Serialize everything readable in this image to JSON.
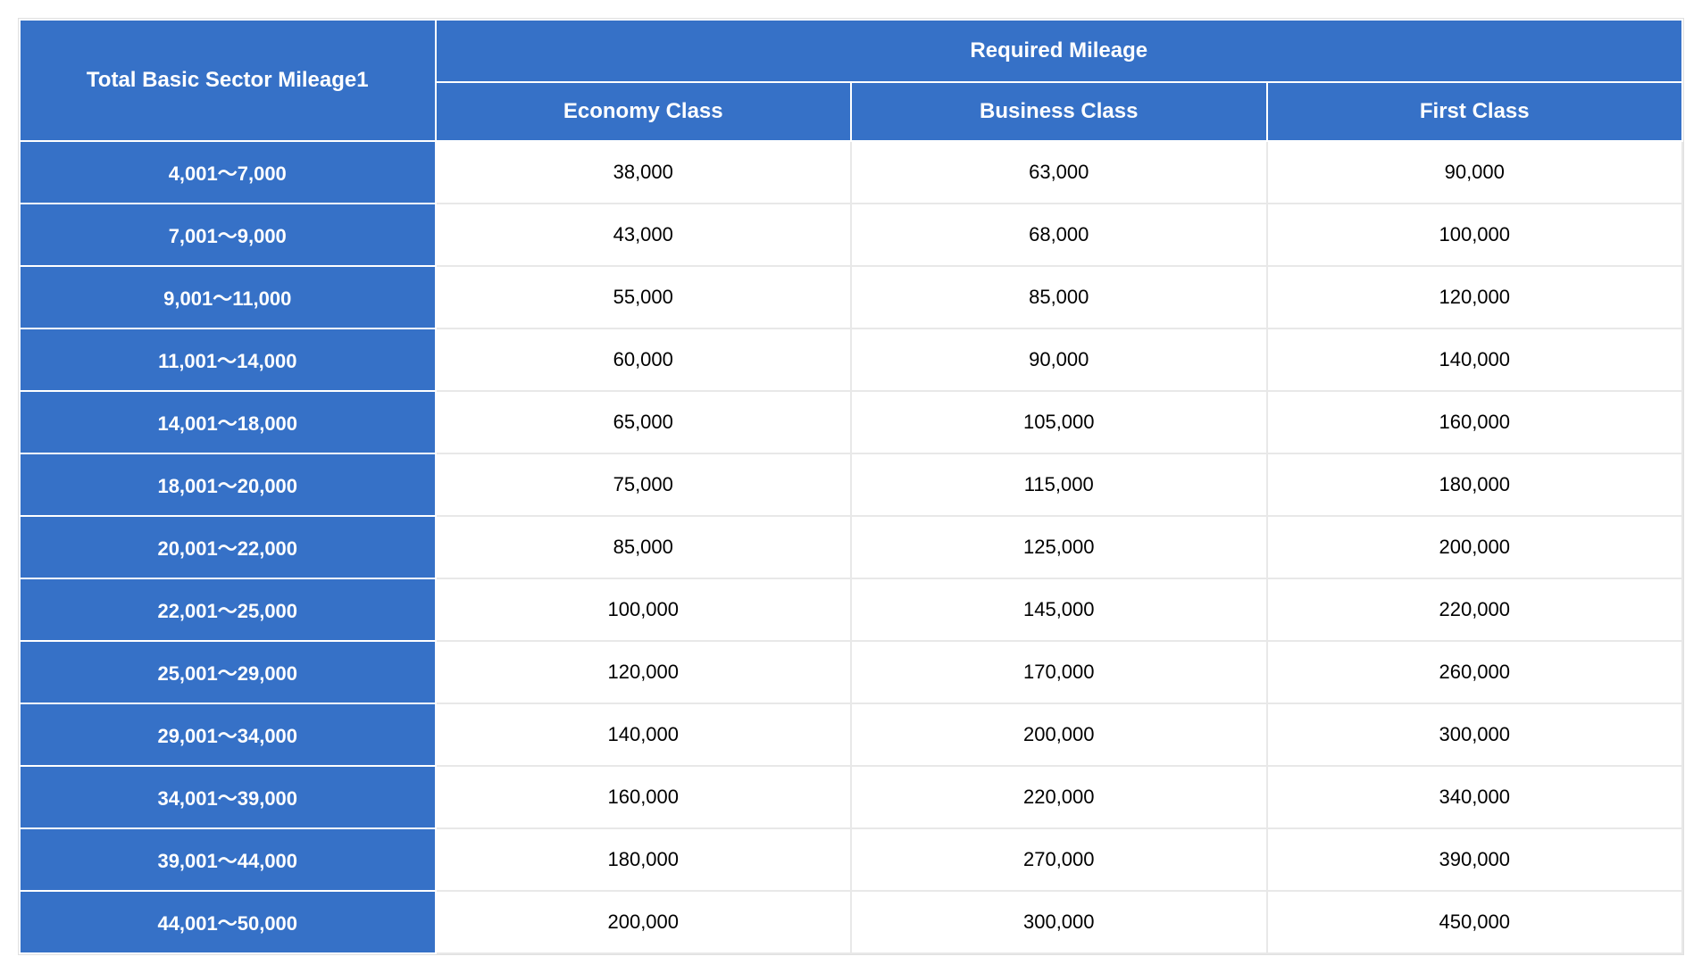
{
  "table": {
    "type": "table",
    "header_bg_color": "#3671c7",
    "header_text_color": "#ffffff",
    "data_bg_color": "#ffffff",
    "data_text_color": "#000000",
    "border_grid_color": "#e8e8e8",
    "header_border_color": "#ffffff",
    "header_fontsize": 24,
    "data_fontsize": 22,
    "row_header_label": "Total Basic Sector Mileage1",
    "grouped_header_label": "Required Mileage",
    "columns": [
      "Economy Class",
      "Business Class",
      "First Class"
    ],
    "rows": [
      {
        "range": "4,001～7,000",
        "economy": "38,000",
        "business": "63,000",
        "first": "90,000"
      },
      {
        "range": "7,001～9,000",
        "economy": "43,000",
        "business": "68,000",
        "first": "100,000"
      },
      {
        "range": "9,001～11,000",
        "economy": "55,000",
        "business": "85,000",
        "first": "120,000"
      },
      {
        "range": "11,001～14,000",
        "economy": "60,000",
        "business": "90,000",
        "first": "140,000"
      },
      {
        "range": "14,001～18,000",
        "economy": "65,000",
        "business": "105,000",
        "first": "160,000"
      },
      {
        "range": "18,001～20,000",
        "economy": "75,000",
        "business": "115,000",
        "first": "180,000"
      },
      {
        "range": "20,001～22,000",
        "economy": "85,000",
        "business": "125,000",
        "first": "200,000"
      },
      {
        "range": "22,001～25,000",
        "economy": "100,000",
        "business": "145,000",
        "first": "220,000"
      },
      {
        "range": "25,001～29,000",
        "economy": "120,000",
        "business": "170,000",
        "first": "260,000"
      },
      {
        "range": "29,001～34,000",
        "economy": "140,000",
        "business": "200,000",
        "first": "300,000"
      },
      {
        "range": "34,001～39,000",
        "economy": "160,000",
        "business": "220,000",
        "first": "340,000"
      },
      {
        "range": "39,001～44,000",
        "economy": "180,000",
        "business": "270,000",
        "first": "390,000"
      },
      {
        "range": "44,001～50,000",
        "economy": "200,000",
        "business": "300,000",
        "first": "450,000"
      }
    ]
  }
}
